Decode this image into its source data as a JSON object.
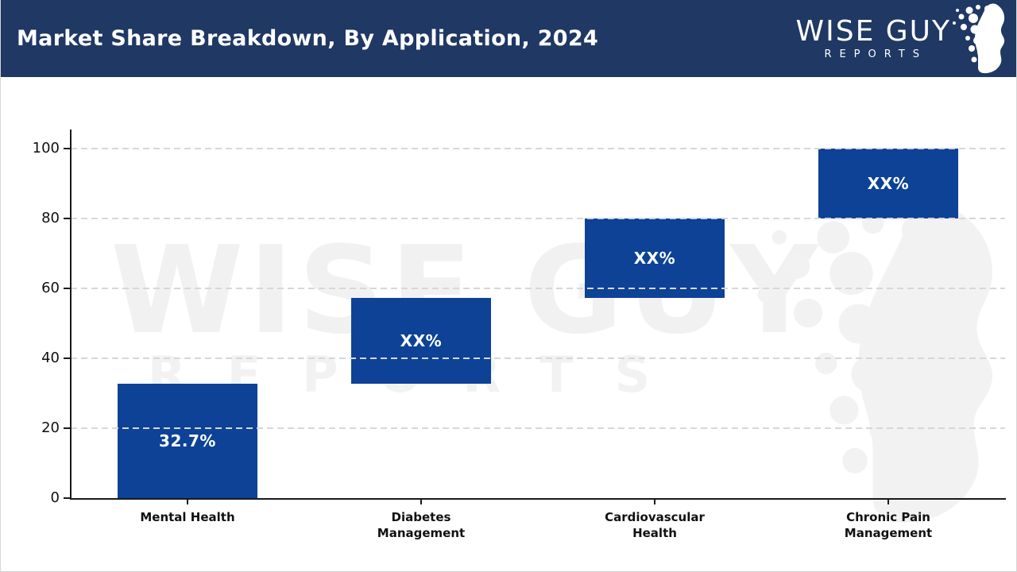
{
  "header": {
    "title": "Market Share Breakdown, By Application, 2024",
    "bg_color": "#1f3864",
    "logo": {
      "name": "WISE GUY",
      "sub": "REPORTS"
    }
  },
  "watermark": {
    "line1": "WISE GUY",
    "line2": "REPORTS"
  },
  "chart_data": {
    "type": "bar",
    "subtype": "waterfall",
    "title": "Market Share Breakdown, By Application, 2024",
    "categories": [
      "Mental Health",
      "Diabetes\nManagement",
      "Cardiovascular\nHealth",
      "Chronic Pain\nManagement"
    ],
    "series": [
      {
        "name": "Market share (%)",
        "starts": [
          0,
          32.7,
          57.3,
          80
        ],
        "ends": [
          32.7,
          57.3,
          80,
          100
        ]
      }
    ],
    "bar_labels": [
      "32.7%",
      "XX%",
      "XX%",
      "XX%"
    ],
    "bar_color": "#0d4296",
    "bar_label_color": "#ffffff",
    "xlabel": "",
    "ylabel": "",
    "ylim": [
      0,
      100
    ],
    "yticks": [
      0,
      20,
      40,
      60,
      80,
      100
    ],
    "grid": "horizontal-dashed",
    "legend": "none"
  }
}
